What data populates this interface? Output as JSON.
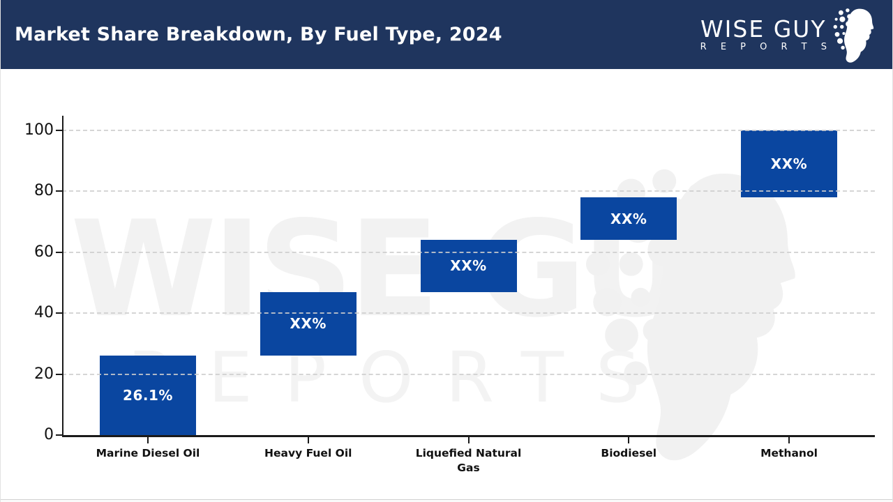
{
  "header": {
    "title": "Market Share Breakdown, By Fuel Type, 2024",
    "logo": {
      "line1": "WISE GUY",
      "line2": "R E P O R T S"
    }
  },
  "watermark": {
    "line1": "WISE GUY",
    "line2": "REPORTS"
  },
  "colors": {
    "header_bg": "#1f355e",
    "bar": "#0a46a0",
    "bar_label": "#ffffff",
    "grid": "#cecece",
    "axis": "#1a1a1a",
    "watermark": "#f2f2f2"
  },
  "chart_data": {
    "type": "bar",
    "subtype": "waterfall",
    "title": "Market Share Breakdown, By Fuel Type, 2024",
    "categories": [
      "Marine Diesel Oil",
      "Heavy Fuel Oil",
      "Liquefied Natural Gas",
      "Biodiesel",
      "Methanol"
    ],
    "segments": [
      {
        "category": "Marine Diesel Oil",
        "start": 0,
        "end": 26.1,
        "label": "26.1%"
      },
      {
        "category": "Heavy Fuel Oil",
        "start": 26.1,
        "end": 47,
        "label": "XX%"
      },
      {
        "category": "Liquefied Natural Gas",
        "start": 47,
        "end": 64,
        "label": "XX%"
      },
      {
        "category": "Biodiesel",
        "start": 64,
        "end": 78,
        "label": "XX%"
      },
      {
        "category": "Methanol",
        "start": 78,
        "end": 100,
        "label": "XX%"
      }
    ],
    "ylim": [
      0,
      100
    ],
    "yticks": [
      0,
      20,
      40,
      60,
      80,
      100
    ],
    "xlabel": "",
    "ylabel": "",
    "grid": "dashed-horizontal",
    "legend": "none"
  }
}
